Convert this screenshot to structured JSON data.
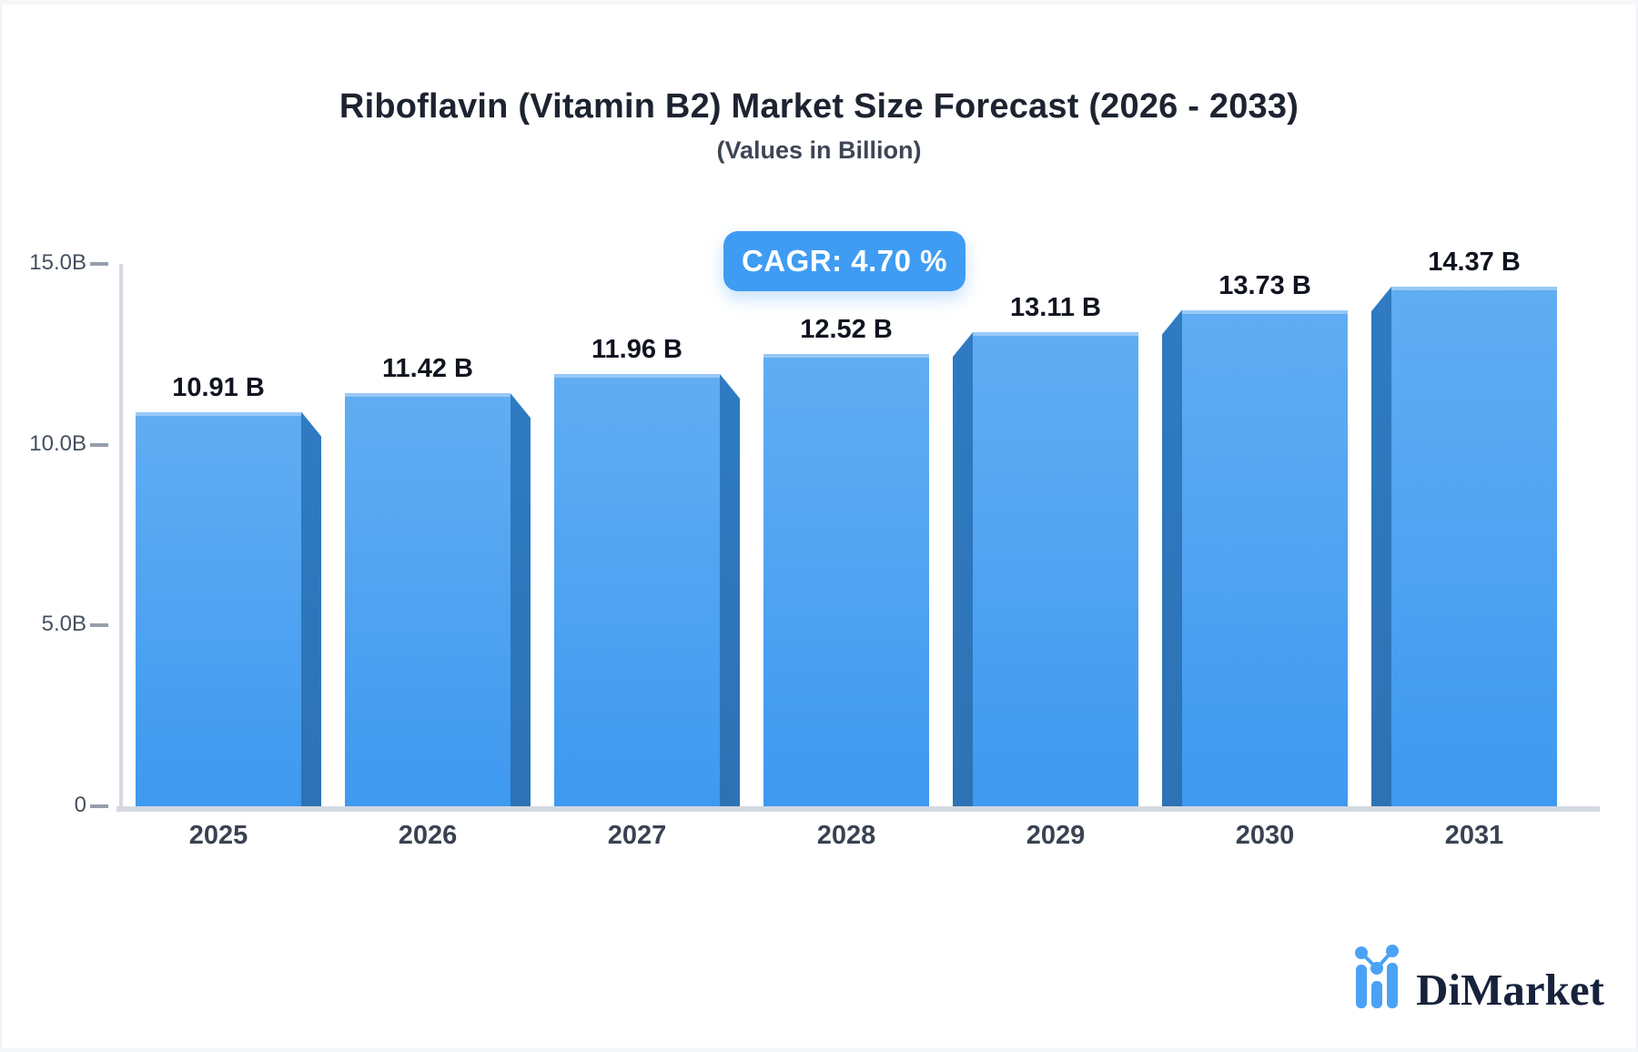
{
  "header": {
    "title": "Riboflavin (Vitamin B2) Market Size Forecast (2026 - 2033)",
    "subtitle": "(Values in Billion)"
  },
  "badge": {
    "label": "CAGR: 4.70 %"
  },
  "chart_data": {
    "type": "bar",
    "title": "Riboflavin (Vitamin B2) Market Size Forecast (2026 - 2033)",
    "subtitle": "(Values in Billion)",
    "categories": [
      "2025",
      "2026",
      "2027",
      "2028",
      "2029",
      "2030",
      "2031"
    ],
    "values": [
      10.91,
      11.42,
      11.96,
      12.52,
      13.11,
      13.73,
      14.37
    ],
    "value_labels": [
      "10.91 B",
      "11.42 B",
      "11.96 B",
      "12.52 B",
      "13.11 B",
      "13.73 B",
      "14.37 B"
    ],
    "cagr_label": "CAGR: 4.70 %",
    "xlabel": "",
    "ylabel": "",
    "ylim": [
      0,
      15
    ],
    "y_ticks": [
      {
        "label": "15.0B",
        "value": 15
      },
      {
        "label": "10.0B",
        "value": 10
      },
      {
        "label": "5.0B",
        "value": 5
      },
      {
        "label": "0",
        "value": 0
      }
    ],
    "grid": false,
    "legend": false,
    "colors": {
      "bar_top": "#61adf2",
      "bar_bottom": "#3e99f0",
      "bar_side_top": "#2f7bc2",
      "bar_side_bottom": "#2d72b4",
      "badge_bg": "#3f9cf3",
      "axis_line": "#d5d9e0"
    }
  },
  "logo": {
    "text": "DiMarket",
    "icon": "mini-bar-chart-icon",
    "icon_color": "#4ba2f5",
    "text_color": "#17223b"
  }
}
